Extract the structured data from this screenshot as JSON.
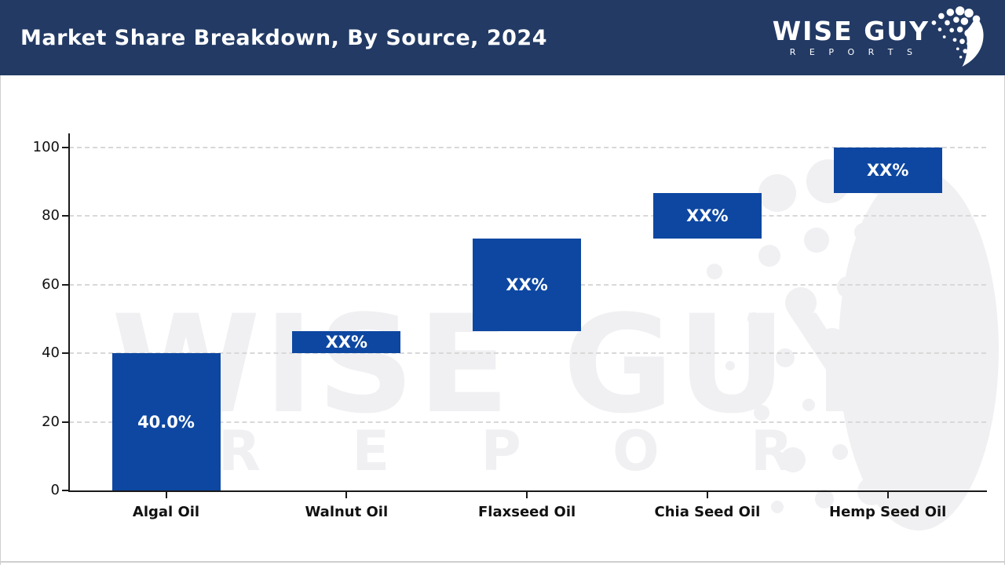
{
  "header": {
    "title": "Market Share Breakdown, By Source, 2024",
    "logo": {
      "line1": "WISE GUY",
      "line2": "R E P O R T S"
    }
  },
  "watermark": {
    "line1": "WISE GUY",
    "line2": "R E P O R T S"
  },
  "colors": {
    "header_bg": "#223a64",
    "bar": "#0d47a1",
    "grid": "#d8d8d8",
    "axis": "#1a1a1a",
    "data_label": "#ffffff"
  },
  "chart_data": {
    "type": "bar",
    "variant": "waterfall",
    "title": "Market Share Breakdown, By Source, 2024",
    "xlabel": "",
    "ylabel": "",
    "ylim": [
      0,
      100
    ],
    "y_ticks": [
      0,
      20,
      40,
      60,
      80,
      100
    ],
    "grid": {
      "axis": "y",
      "style": "dashed",
      "color": "#d8d8d8"
    },
    "legend": "none",
    "bar_color": "#0d47a1",
    "data_label_color": "#ffffff",
    "categories": [
      "Algal Oil",
      "Walnut Oil",
      "Flaxseed Oil",
      "Chia Seed Oil",
      "Hemp Seed Oil"
    ],
    "segments": [
      {
        "category": "Algal Oil",
        "start": 0,
        "end": 40,
        "value": 40.0,
        "label": "40.0%"
      },
      {
        "category": "Walnut Oil",
        "start": 40,
        "end": 46.5,
        "value": 6.5,
        "label": "XX%"
      },
      {
        "category": "Flaxseed Oil",
        "start": 46.5,
        "end": 73.3,
        "value": 26.8,
        "label": "XX%"
      },
      {
        "category": "Chia Seed Oil",
        "start": 73.3,
        "end": 86.6,
        "value": 13.3,
        "label": "XX%"
      },
      {
        "category": "Hemp Seed Oil",
        "start": 86.6,
        "end": 100,
        "value": 13.4,
        "label": "XX%"
      }
    ]
  }
}
